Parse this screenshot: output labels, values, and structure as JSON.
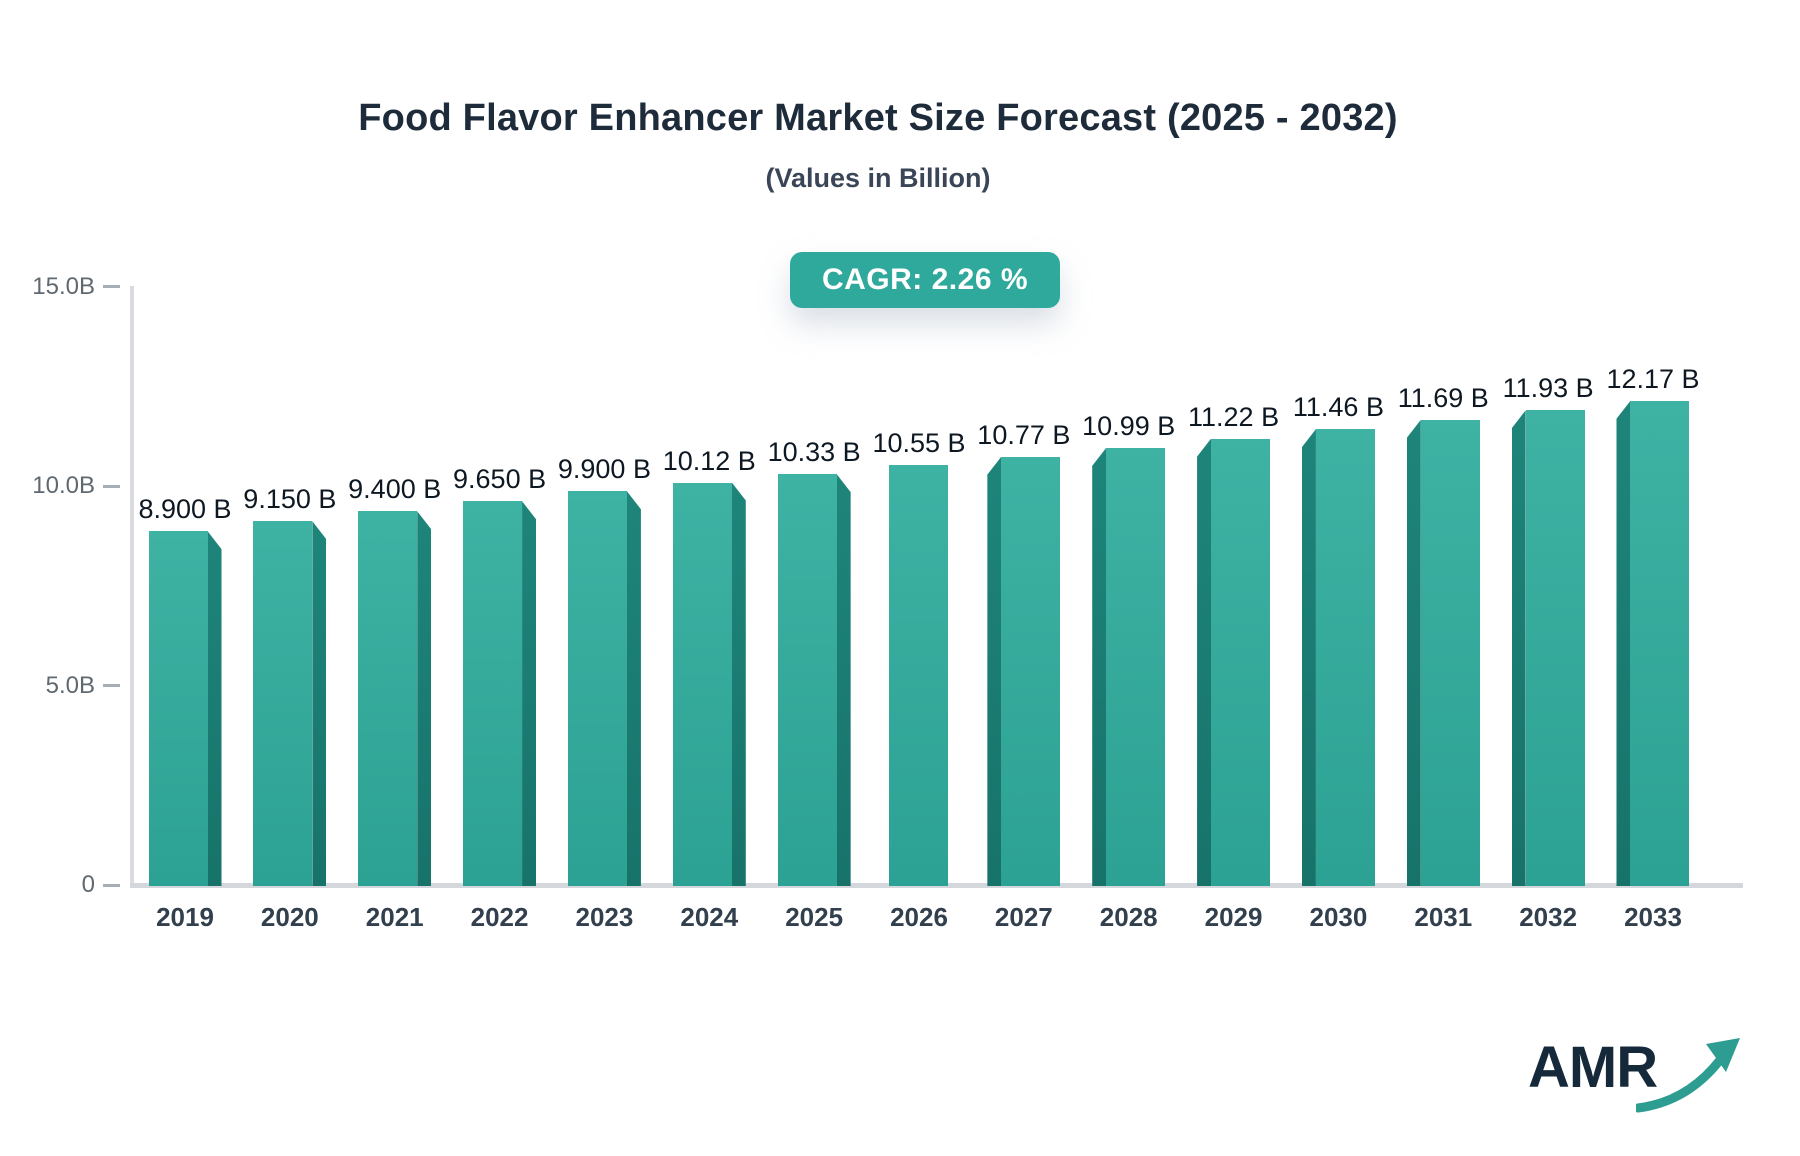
{
  "header": {
    "title": "Food Flavor Enhancer Market Size Forecast (2025 - 2032)",
    "subtitle": "(Values in Billion)",
    "cagr_badge": "CAGR: 2.26 %"
  },
  "chart_data": {
    "type": "bar",
    "title": "Food Flavor Enhancer Market Size Forecast (2025 - 2032)",
    "subtitle": "(Values in Billion)",
    "categories": [
      "2019",
      "2020",
      "2021",
      "2022",
      "2023",
      "2024",
      "2025",
      "2026",
      "2027",
      "2028",
      "2029",
      "2030",
      "2031",
      "2032",
      "2033"
    ],
    "values": [
      8.9,
      9.15,
      9.4,
      9.65,
      9.9,
      10.12,
      10.33,
      10.55,
      10.77,
      10.99,
      11.22,
      11.46,
      11.69,
      11.93,
      12.17
    ],
    "value_labels": [
      "8.900 B",
      "9.150 B",
      "9.400 B",
      "9.650 B",
      "9.900 B",
      "10.12 B",
      "10.33 B",
      "10.55 B",
      "10.77 B",
      "10.99 B",
      "11.22 B",
      "11.46 B",
      "11.69 B",
      "11.93 B",
      "12.17 B"
    ],
    "xlabel": "",
    "ylabel": "",
    "ylim": [
      0,
      15
    ],
    "grid": false,
    "legend": null,
    "y_axis": {
      "ticks": [
        {
          "label": "15.0B",
          "value": 15
        },
        {
          "label": "10.0B",
          "value": 10
        },
        {
          "label": "5.0B",
          "value": 5
        },
        {
          "label": "0",
          "value": 0
        }
      ]
    },
    "annotation": "CAGR: 2.26 %"
  },
  "logo": {
    "text": "AMR"
  },
  "colors": {
    "bar_main_top": "#3EB2A3",
    "bar_main_bottom": "#2CA294",
    "bar_side_top": "#1E857B",
    "bar_side_bottom": "#17736A",
    "badge_bg": "#2FA99B",
    "logo_navy": "#16293B",
    "arrow_teal": "#2D9D92",
    "axis_line": "#D9DBDF",
    "title_color": "#1E2B3A"
  }
}
